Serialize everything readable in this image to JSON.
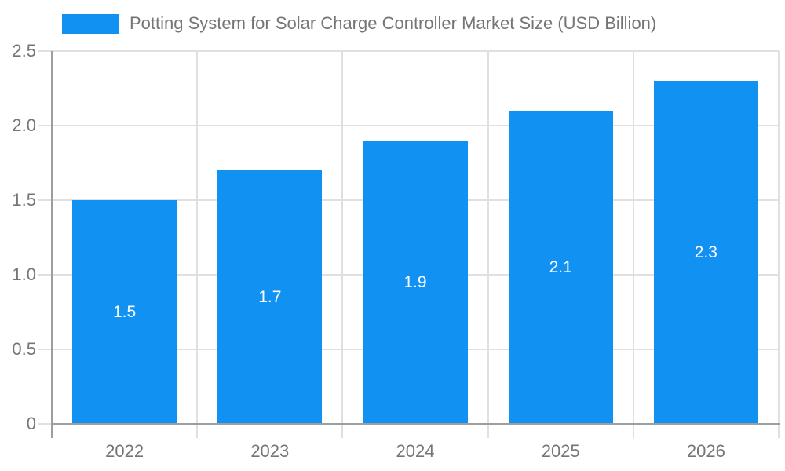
{
  "legend": {
    "label": "Potting System for Solar Charge Controller Market Size (USD Billion)"
  },
  "chart_data": {
    "type": "bar",
    "title": "Potting System for Solar Charge Controller Market Size (USD Billion)",
    "categories": [
      "2022",
      "2023",
      "2024",
      "2025",
      "2026"
    ],
    "values": [
      1.5,
      1.7,
      1.9,
      2.1,
      2.3
    ],
    "bar_labels": [
      "1.5",
      "1.7",
      "1.9",
      "2.1",
      "2.3"
    ],
    "y_ticks": [
      {
        "value": 0,
        "label": "0"
      },
      {
        "value": 0.5,
        "label": "0.5"
      },
      {
        "value": 1.0,
        "label": "1.0"
      },
      {
        "value": 1.5,
        "label": "1.5"
      },
      {
        "value": 2.0,
        "label": "2.0"
      },
      {
        "value": 2.5,
        "label": "2.5"
      }
    ],
    "ylim": [
      0,
      2.5
    ],
    "grid": true,
    "legend_position": "top-left",
    "colors": {
      "bar": "#1191F1",
      "bar_value_text": "#ffffff",
      "axis_text": "#757575",
      "gridline": "#e0e0e0",
      "axis_line": "#9e9e9e"
    }
  }
}
